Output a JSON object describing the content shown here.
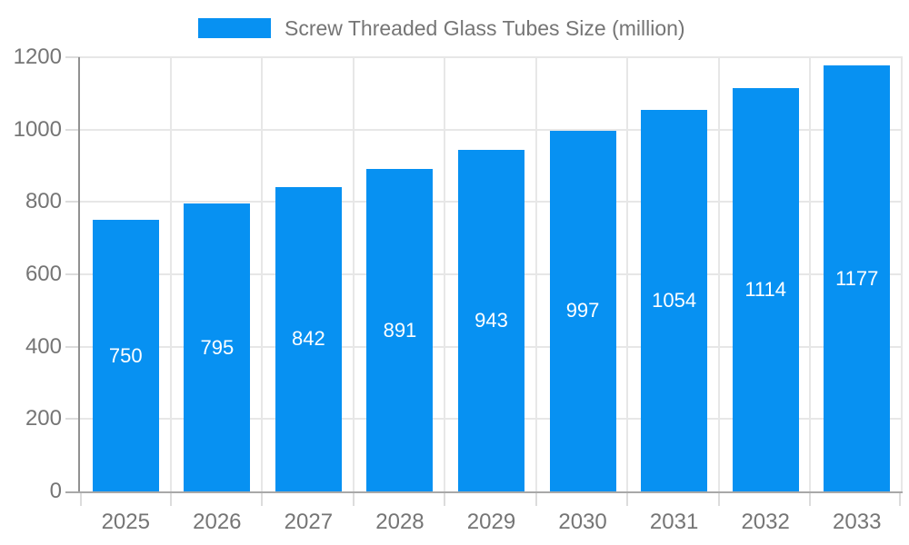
{
  "chart_data": {
    "type": "bar",
    "title": "Screw Threaded Glass Tubes Size (million)",
    "categories": [
      "2025",
      "2026",
      "2027",
      "2028",
      "2029",
      "2030",
      "2031",
      "2032",
      "2033"
    ],
    "values": [
      750,
      795,
      842,
      891,
      943,
      997,
      1054,
      1114,
      1177
    ],
    "xlabel": "",
    "ylabel": "",
    "ylim": [
      0,
      1200
    ],
    "ytick_step": 200,
    "ytick_labels": [
      "0",
      "200",
      "400",
      "600",
      "800",
      "1000",
      "1200"
    ],
    "grid": "horizontal and vertical light gray gridlines",
    "legend_position": "top-center",
    "data_labels": "values shown in white at vertical middle of each bar",
    "colors": {
      "bar": "#0791f2",
      "bar_value_text": "#ffffff",
      "axis_label_text": "#757575",
      "gridline": "#e7e7e7",
      "tick": "#dcdcdc",
      "y_axis_line": "#919191",
      "x_axis_line": "#a8a8a8",
      "background": "#ffffff"
    }
  }
}
